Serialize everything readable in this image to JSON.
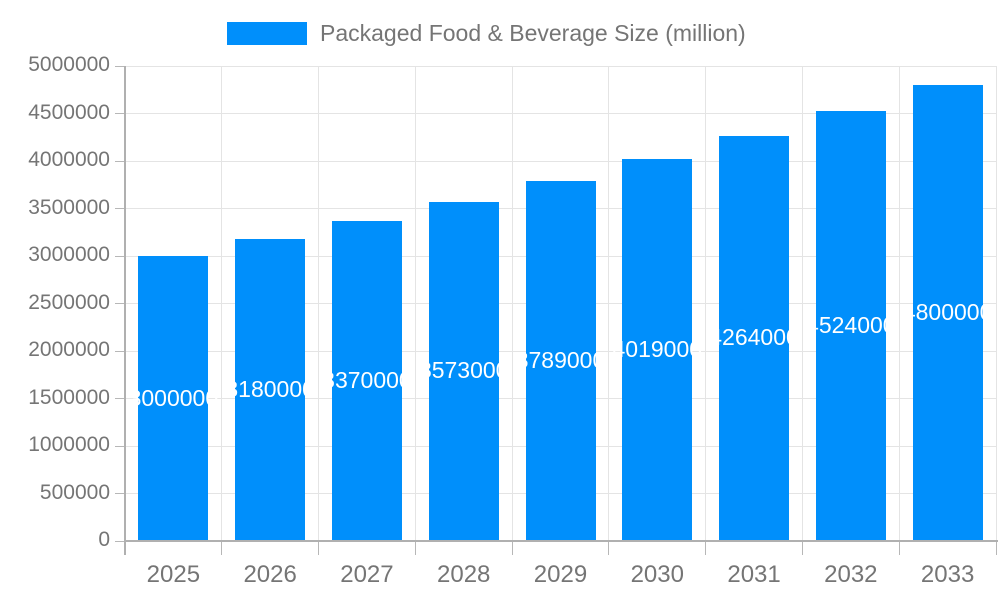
{
  "chart_data": {
    "type": "bar",
    "title": "Packaged Food & Beverage Size (million)",
    "categories": [
      "2025",
      "2026",
      "2027",
      "2028",
      "2029",
      "2030",
      "2031",
      "2032",
      "2033"
    ],
    "series": [
      {
        "name": "Packaged Food & Beverage Size (million)",
        "values": [
          3000000,
          3180000,
          3370000,
          3573000,
          3789000,
          4019000,
          4264000,
          4524000,
          4800000
        ]
      }
    ],
    "data_labels_visible": true,
    "xlabel": "",
    "ylabel": "",
    "ylim": [
      0,
      5000000
    ],
    "yticks": [
      0,
      500000,
      1000000,
      1500000,
      2000000,
      2500000,
      3000000,
      3500000,
      4000000,
      4500000,
      5000000
    ],
    "grid": true,
    "legend_position": "top",
    "colors": {
      "bar": "#008FFB",
      "data_label": "#ffffff",
      "axis_text": "#757575",
      "gridline": "#e4e4e4",
      "axis_line": "#b0b0b0",
      "background": "#ffffff"
    }
  },
  "legend": {
    "label": "Packaged Food & Beverage Size (million)"
  }
}
